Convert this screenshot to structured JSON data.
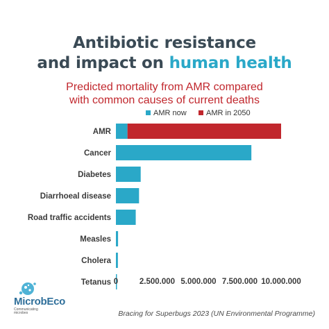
{
  "header": {
    "title_line1": "Antibiotic resistance",
    "title_line2_part1": "and impact on ",
    "title_line2_accent": "human health",
    "subtitle_line1": "Predicted mortality from AMR compared",
    "subtitle_line2": "with common causes of current deaths"
  },
  "colors": {
    "now": "#2aa8c8",
    "future": "#c1272d",
    "title": "#3a4a55",
    "accent": "#2aa8c8"
  },
  "chart_data": {
    "type": "bar",
    "orientation": "horizontal",
    "stacked": true,
    "categories": [
      "AMR",
      "Cancer",
      "Diabetes",
      "Diarrhoeal disease",
      "Road traffic accidents",
      "Measles",
      "Cholera",
      "Tetanus"
    ],
    "series": [
      {
        "name": "AMR now",
        "values": [
          700000,
          8200000,
          1500000,
          1400000,
          1200000,
          130000,
          120000,
          60000
        ]
      },
      {
        "name": "AMR in 2050",
        "values": [
          9300000,
          0,
          0,
          0,
          0,
          0,
          0,
          0
        ]
      }
    ],
    "xlim": [
      0,
      10000000
    ],
    "xticks": [
      0,
      2500000,
      5000000,
      7500000,
      10000000
    ],
    "xtick_labels": [
      "0",
      "2.500.000",
      "5.000.000",
      "7.500.000",
      "10.000.000"
    ],
    "legend_position": "top-right",
    "grid": false
  },
  "branding": {
    "logo_name": "MicrobEco",
    "logo_tagline": "Communicating microbes",
    "logo_icon": "microbe-icon"
  },
  "source": "Bracing for Superbugs 2023 (UN Environmental Programme)"
}
